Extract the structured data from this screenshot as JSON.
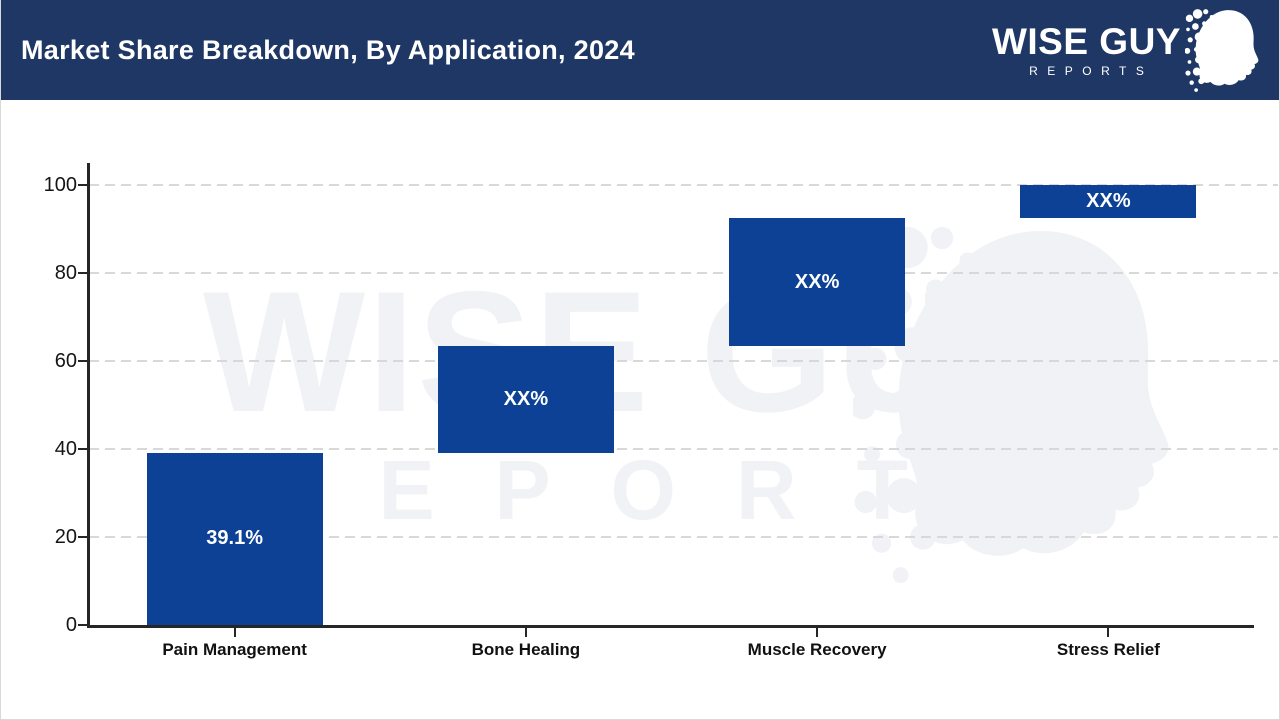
{
  "header": {
    "title": "Market Share Breakdown, By Application, 2024",
    "logo": {
      "name": "WISE GUY",
      "subtitle": "REPORTS"
    }
  },
  "watermark": {
    "line1": "WISE GUY",
    "line2": "REPORTS"
  },
  "colors": {
    "header_bg": "#1f3765",
    "bar": "#0c4196",
    "bar_label": "#ffffff",
    "axis": "#262626",
    "gridline": "#d8d8d8",
    "watermark": "#f1f2f5",
    "logo_white": "#ffffff"
  },
  "chart_data": {
    "type": "bar",
    "subtype": "floating-segment-waterfall",
    "title": "Market Share Breakdown, By Application, 2024",
    "categories": [
      "Pain Management",
      "Bone Healing",
      "Muscle Recovery",
      "Stress Relief"
    ],
    "bars": [
      {
        "category": "Pain Management",
        "from": 0,
        "to": 39.1,
        "label": "39.1%"
      },
      {
        "category": "Bone Healing",
        "from": 39.1,
        "to": 63.3,
        "label": "XX%"
      },
      {
        "category": "Muscle Recovery",
        "from": 63.3,
        "to": 92.6,
        "label": "XX%"
      },
      {
        "category": "Stress Relief",
        "from": 92.6,
        "to": 100,
        "label": "XX%"
      }
    ],
    "yticks": [
      0,
      20,
      40,
      60,
      80,
      100
    ],
    "ylim": [
      0,
      105
    ],
    "xlabel": "",
    "ylabel": "",
    "grid": "horizontal-dashed",
    "legend": "none"
  }
}
